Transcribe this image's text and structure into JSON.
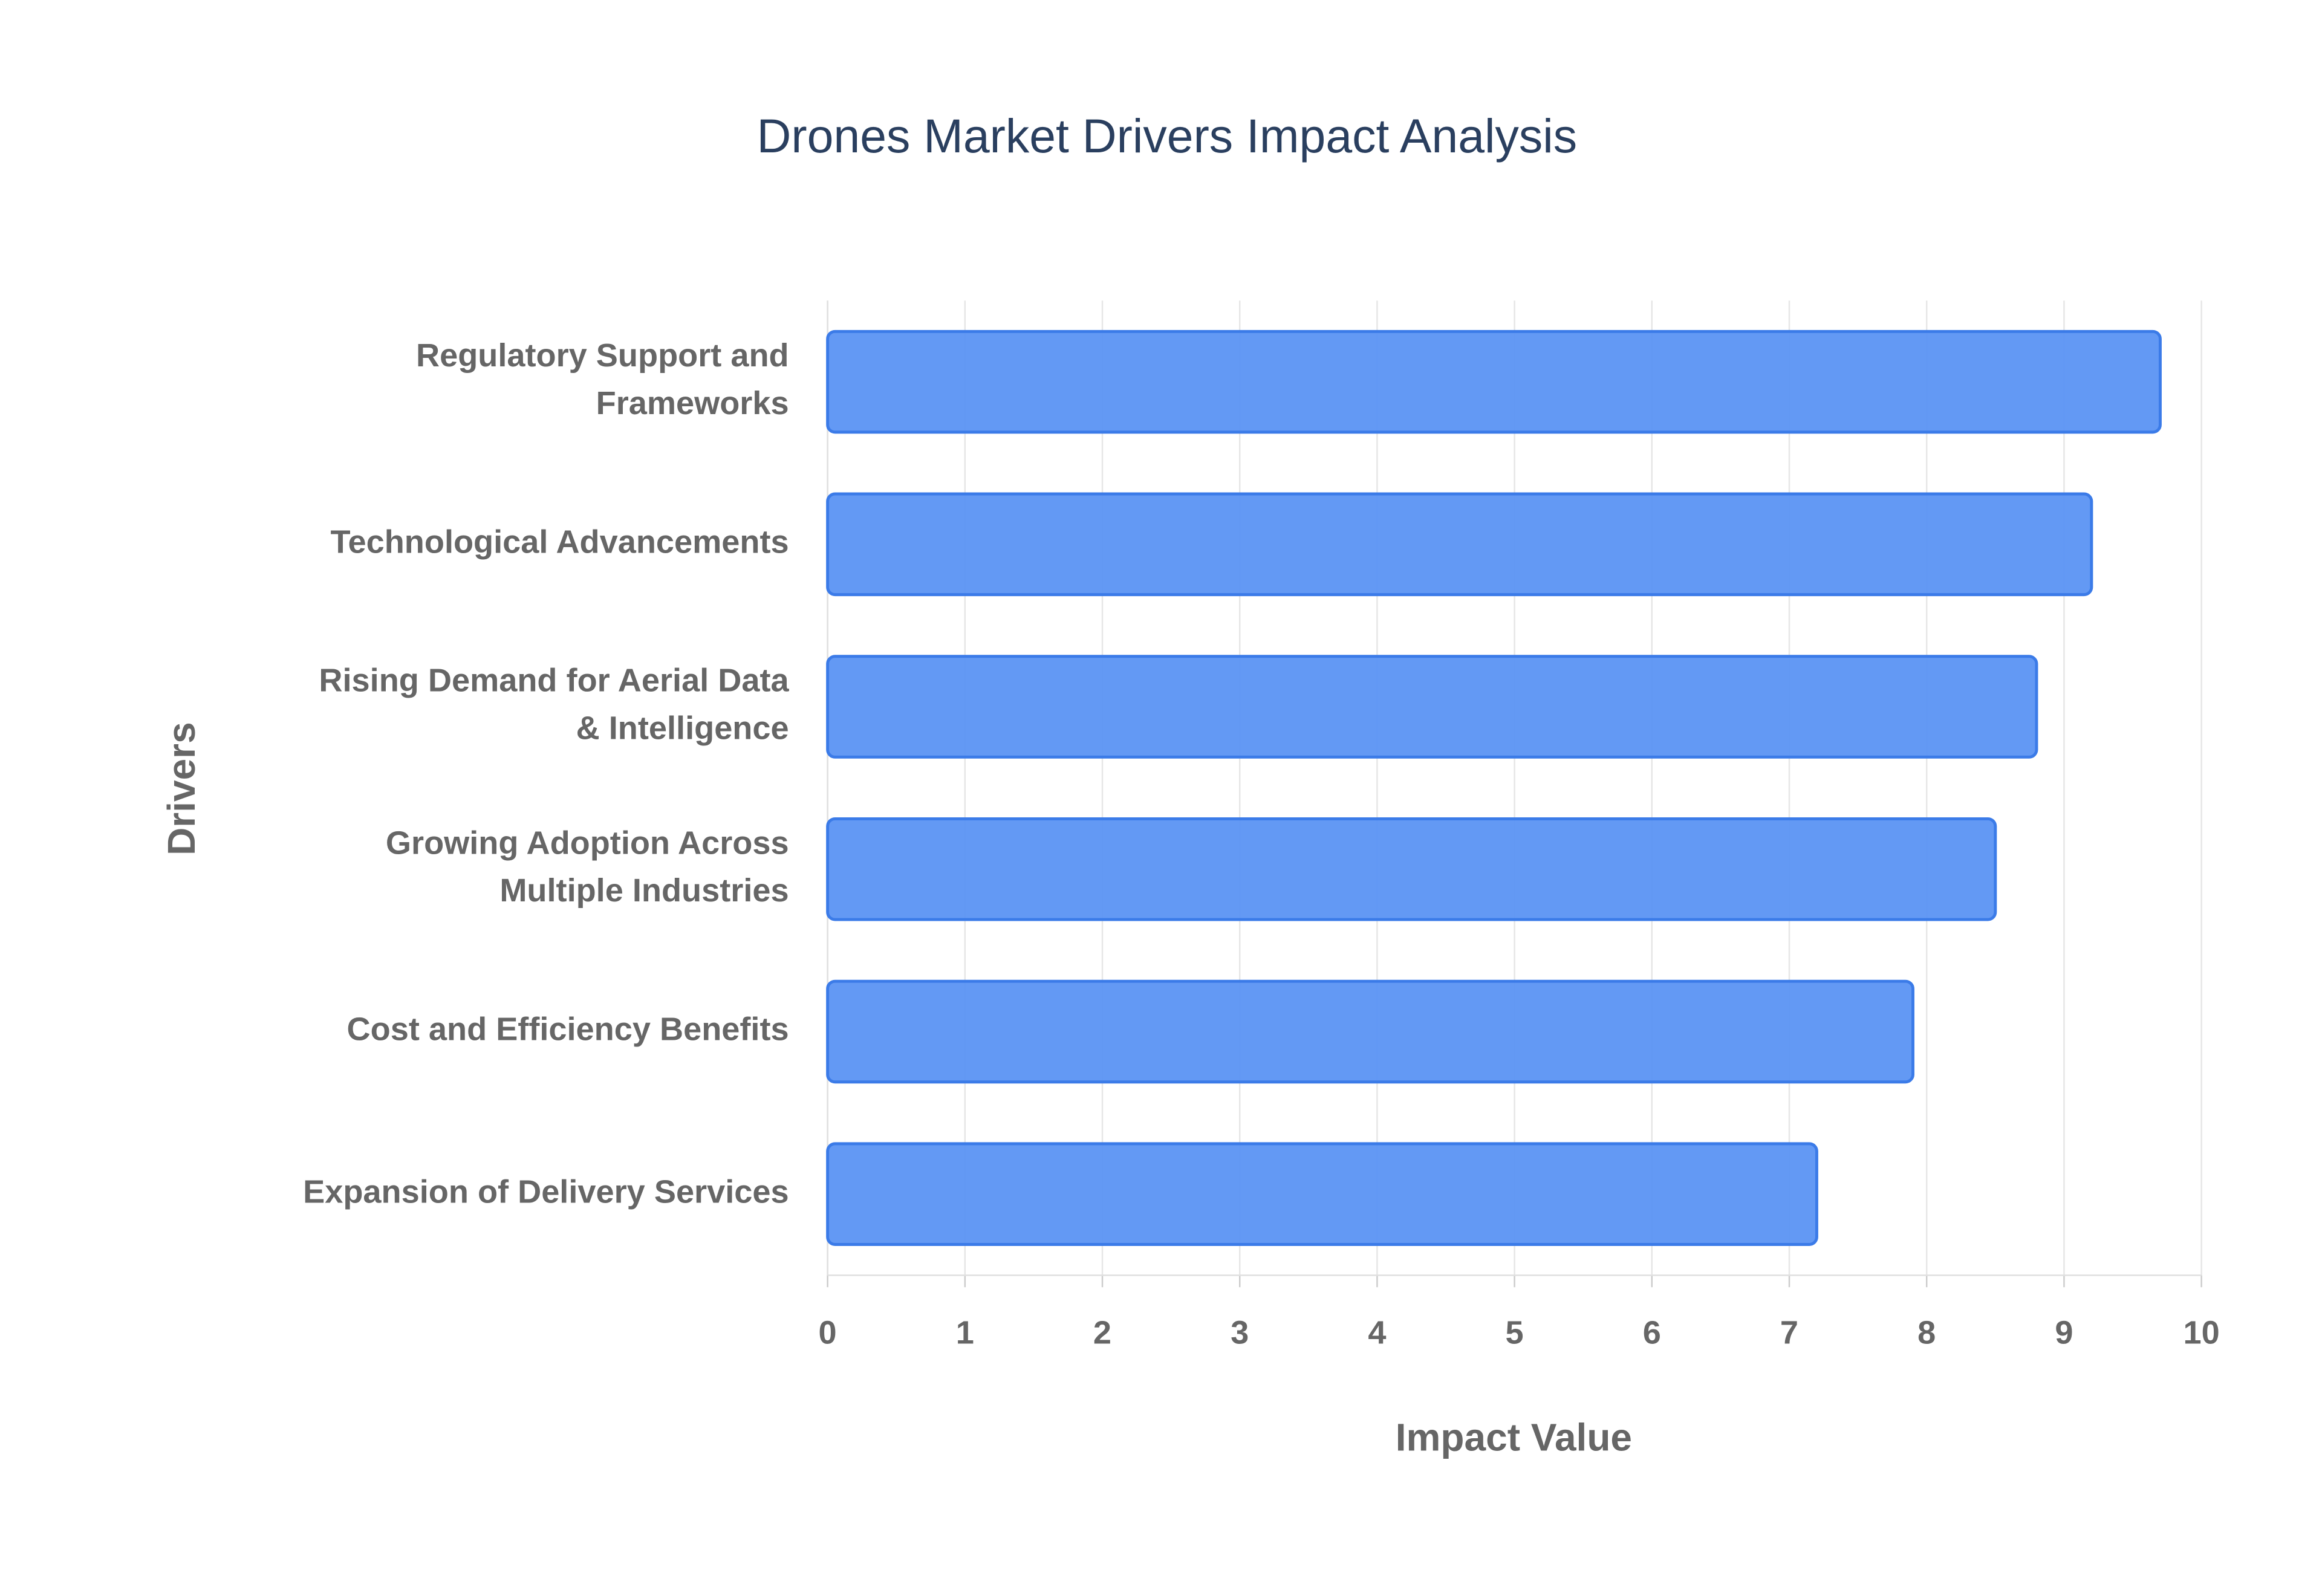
{
  "chart_data": {
    "type": "bar",
    "orientation": "horizontal",
    "title": "Drones Market Drivers Impact Analysis",
    "x_label": "Impact Value",
    "y_label": "Drivers",
    "categories": [
      "Regulatory Support and\nFrameworks",
      "Technological Advancements",
      "Rising Demand for Aerial Data\n& Intelligence",
      "Growing Adoption Across\nMultiple Industries",
      "Cost and Efficiency Benefits",
      "Expansion of Delivery Services"
    ],
    "values": [
      9.7,
      9.2,
      8.8,
      8.5,
      7.9,
      7.2
    ],
    "color": "#5b93f3",
    "xlim": [
      0,
      10
    ],
    "xticks": [
      0,
      1,
      2,
      3,
      4,
      5,
      6,
      7,
      8,
      9,
      10
    ],
    "grid": true
  }
}
